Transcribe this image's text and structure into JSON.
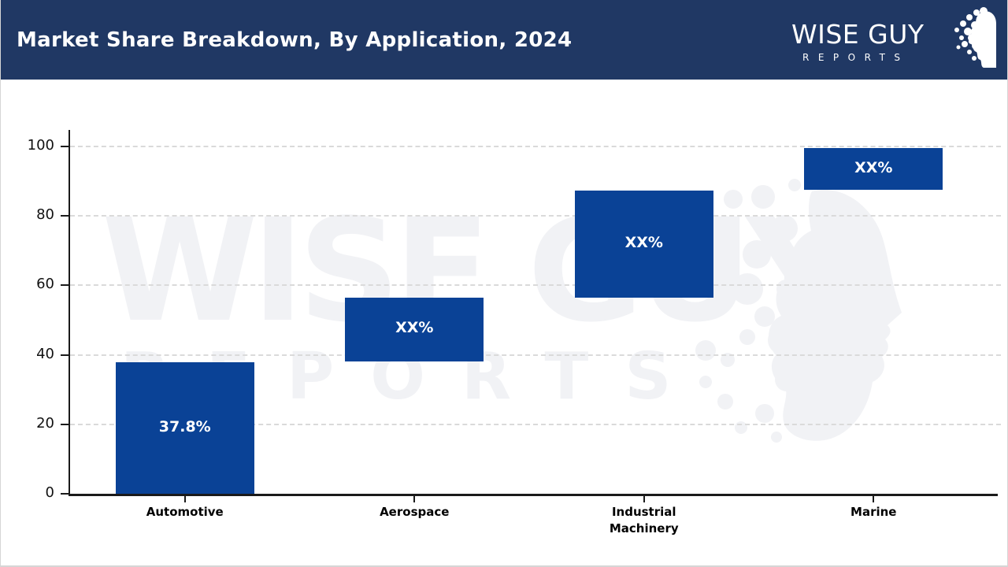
{
  "header": {
    "title": "Market Share Breakdown, By Application, 2024",
    "logo": {
      "name_line": "WISE GUY",
      "sub_line": "REPORTS"
    }
  },
  "watermark": {
    "big_text": "WISE GUY",
    "sub_text": "REPORTS"
  },
  "chart_data": {
    "type": "bar",
    "subtype": "floating-waterfall",
    "title": "Market Share Breakdown, By Application, 2024",
    "categories": [
      "Automotive",
      "Aerospace",
      "Industrial Machinery",
      "Marine"
    ],
    "category_label_lines": [
      [
        "Automotive"
      ],
      [
        "Aerospace"
      ],
      [
        "Industrial",
        "Machinery"
      ],
      [
        "Marine"
      ]
    ],
    "bars": [
      {
        "category": "Automotive",
        "start": 0,
        "end": 37.8,
        "label": "37.8%"
      },
      {
        "category": "Aerospace",
        "start": 38.1,
        "end": 56.5,
        "label": "XX%"
      },
      {
        "category": "Industrial Machinery",
        "start": 56.5,
        "end": 87.3,
        "label": "XX%"
      },
      {
        "category": "Marine",
        "start": 87.5,
        "end": 99.5,
        "label": "XX%"
      }
    ],
    "ylim": [
      0,
      100
    ],
    "yticks": [
      0,
      20,
      40,
      60,
      80,
      100
    ],
    "grid": "horizontal-dashed",
    "legend": "none",
    "xlabel": "",
    "ylabel": "",
    "bar_color": "#0a4296",
    "bar_label_color": "#ffffff"
  },
  "colors": {
    "header_bg": "#203864",
    "bar": "#0a4296",
    "grid": "#dadada",
    "axis": "#1a1a1a",
    "watermark": "#f1f2f5"
  }
}
